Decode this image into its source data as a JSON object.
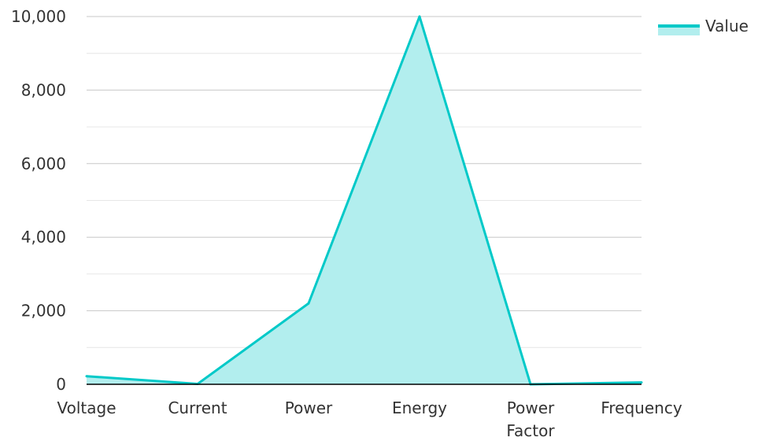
{
  "chart_data": {
    "type": "area",
    "categories": [
      "Voltage",
      "Current",
      "Power",
      "Energy",
      "Power Factor",
      "Frequency"
    ],
    "series": [
      {
        "name": "Value",
        "values": [
          220,
          10,
          2200,
          10000,
          0.95,
          50
        ]
      }
    ],
    "ylim": [
      0,
      10000
    ],
    "yticks": [
      0,
      2000,
      4000,
      6000,
      8000,
      10000
    ],
    "ytick_labels": [
      "0",
      "2,000",
      "4,000",
      "6,000",
      "8,000",
      "10,000"
    ],
    "grid": true,
    "legend_position": "top-right",
    "colors": {
      "line": "#00c9c8",
      "fill": "#b2eeee",
      "grid": "#c8c8c8",
      "minor_grid": "#e6e6e6",
      "axis": "#000000"
    }
  }
}
